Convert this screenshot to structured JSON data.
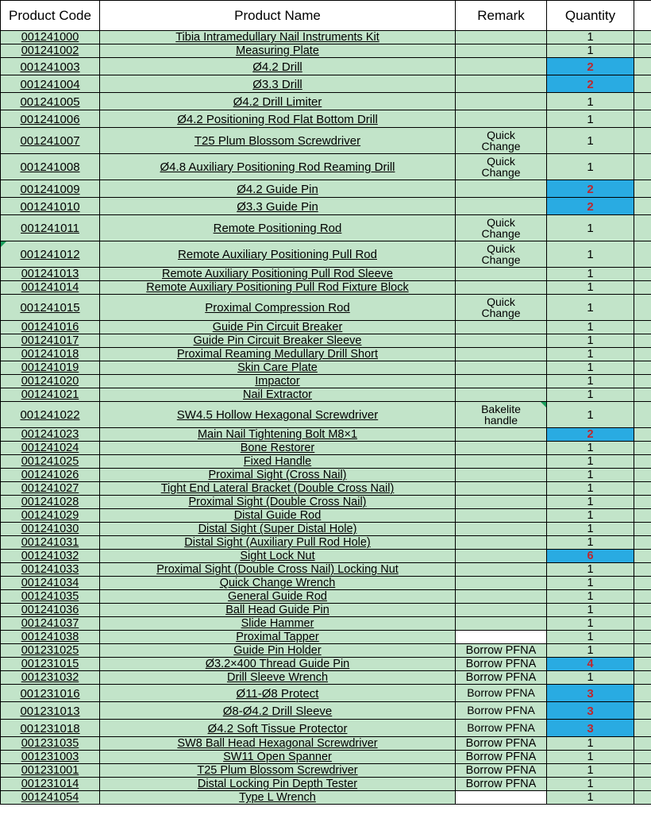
{
  "headers": {
    "code": "Product Code",
    "name": "Product Name",
    "remark": "Remark",
    "quantity": "Quantity"
  },
  "colors": {
    "cell_bg": "#c2e4c9",
    "header_bg": "#ffffff",
    "highlight_bg": "#29abe2",
    "highlight_fg": "#c0272d",
    "border": "#000000",
    "triangle": "#1a9e5c"
  },
  "rows": [
    {
      "code": "001241000",
      "name": "Tibia Intramedullary Nail Instruments Kit",
      "remark": "",
      "qty": "1",
      "h": "short",
      "qty_hl": false,
      "rw": false
    },
    {
      "code": "001241002",
      "name": "Measuring Plate",
      "remark": "",
      "qty": "1",
      "h": "short",
      "qty_hl": false,
      "rw": false
    },
    {
      "code": "001241003",
      "name": "Ø4.2 Drill",
      "remark": "",
      "qty": "2",
      "h": "med",
      "qty_hl": true,
      "rw": false
    },
    {
      "code": "001241004",
      "name": "Ø3.3 Drill",
      "remark": "",
      "qty": "2",
      "h": "med",
      "qty_hl": true,
      "rw": false
    },
    {
      "code": "001241005",
      "name": "Ø4.2 Drill Limiter",
      "remark": "",
      "qty": "1",
      "h": "med",
      "qty_hl": false,
      "rw": false
    },
    {
      "code": "001241006",
      "name": "Ø4.2 Positioning Rod Flat Bottom Drill",
      "remark": "",
      "qty": "1",
      "h": "med",
      "qty_hl": false,
      "rw": false
    },
    {
      "code": "001241007",
      "name": "T25 Plum Blossom Screwdriver",
      "remark": "Quick\nChange",
      "qty": "1",
      "h": "tall",
      "qty_hl": false,
      "rw": false
    },
    {
      "code": "001241008",
      "name": "Ø4.8 Auxiliary Positioning Rod Reaming Drill",
      "remark": "Quick\nChange",
      "qty": "1",
      "h": "tall",
      "qty_hl": false,
      "rw": false
    },
    {
      "code": "001241009",
      "name": "Ø4.2 Guide Pin",
      "remark": "",
      "qty": "2",
      "h": "med",
      "qty_hl": true,
      "rw": false
    },
    {
      "code": "001241010",
      "name": "Ø3.3 Guide Pin",
      "remark": "",
      "qty": "2",
      "h": "med",
      "qty_hl": true,
      "rw": false
    },
    {
      "code": "001241011",
      "name": "Remote Positioning Rod",
      "remark": "Quick\nChange",
      "qty": "1",
      "h": "tall",
      "qty_hl": false,
      "rw": false
    },
    {
      "code": "001241012",
      "name": "Remote Auxiliary Positioning Pull Rod",
      "remark": "Quick\nChange",
      "qty": "1",
      "h": "tall",
      "qty_hl": false,
      "rw": false,
      "tri": "code"
    },
    {
      "code": "001241013",
      "name": "Remote Auxiliary Positioning Pull Rod Sleeve",
      "remark": "",
      "qty": "1",
      "h": "short",
      "qty_hl": false,
      "rw": false
    },
    {
      "code": "001241014",
      "name": "Remote Auxiliary Positioning Pull Rod Fixture Block",
      "remark": "",
      "qty": "1",
      "h": "short",
      "qty_hl": false,
      "rw": false
    },
    {
      "code": "001241015",
      "name": "Proximal Compression Rod",
      "remark": "Quick\nChange",
      "qty": "1",
      "h": "tall",
      "qty_hl": false,
      "rw": false
    },
    {
      "code": "001241016",
      "name": "Guide Pin Circuit Breaker",
      "remark": "",
      "qty": "1",
      "h": "short",
      "qty_hl": false,
      "rw": false
    },
    {
      "code": "001241017",
      "name": "Guide Pin Circuit Breaker Sleeve",
      "remark": "",
      "qty": "1",
      "h": "short",
      "qty_hl": false,
      "rw": false
    },
    {
      "code": "001241018",
      "name": "Proximal Reaming Medullary Drill Short",
      "remark": "",
      "qty": "1",
      "h": "short",
      "qty_hl": false,
      "rw": false
    },
    {
      "code": "001241019",
      "name": "Skin Care Plate",
      "remark": "",
      "qty": "1",
      "h": "short",
      "qty_hl": false,
      "rw": false
    },
    {
      "code": "001241020",
      "name": "Impactor",
      "remark": "",
      "qty": "1",
      "h": "short",
      "qty_hl": false,
      "rw": false
    },
    {
      "code": "001241021",
      "name": "Nail Extractor",
      "remark": "",
      "qty": "1",
      "h": "short",
      "qty_hl": false,
      "rw": false
    },
    {
      "code": "001241022",
      "name": "SW4.5 Hollow Hexagonal Screwdriver",
      "remark": "Bakelite\nhandle",
      "qty": "1",
      "h": "tall",
      "qty_hl": false,
      "rw": false,
      "tri": "remark"
    },
    {
      "code": "001241023",
      "name": "Main Nail Tightening Bolt M8×1",
      "remark": "",
      "qty": "2",
      "h": "short",
      "qty_hl": true,
      "rw": false
    },
    {
      "code": "001241024",
      "name": "Bone Restorer",
      "remark": "",
      "qty": "1",
      "h": "short",
      "qty_hl": false,
      "rw": false
    },
    {
      "code": "001241025",
      "name": "Fixed Handle",
      "remark": "",
      "qty": "1",
      "h": "short",
      "qty_hl": false,
      "rw": false
    },
    {
      "code": "001241026",
      "name": "Proximal Sight (Cross Nail)",
      "remark": "",
      "qty": "1",
      "h": "short",
      "qty_hl": false,
      "rw": false
    },
    {
      "code": "001241027",
      "name": "Tight End Lateral Bracket (Double Cross Nail)",
      "remark": "",
      "qty": "1",
      "h": "short",
      "qty_hl": false,
      "rw": false
    },
    {
      "code": "001241028",
      "name": "Proximal Sight (Double Cross Nail)",
      "remark": "",
      "qty": "1",
      "h": "short",
      "qty_hl": false,
      "rw": false
    },
    {
      "code": "001241029",
      "name": "Distal Guide Rod",
      "remark": "",
      "qty": "1",
      "h": "short",
      "qty_hl": false,
      "rw": false
    },
    {
      "code": "001241030",
      "name": "Distal Sight (Super Distal Hole)",
      "remark": "",
      "qty": "1",
      "h": "short",
      "qty_hl": false,
      "rw": false
    },
    {
      "code": "001241031",
      "name": "Distal Sight (Auxiliary Pull Rod Hole)",
      "remark": "",
      "qty": "1",
      "h": "short",
      "qty_hl": false,
      "rw": false
    },
    {
      "code": "001241032",
      "name": "Sight Lock Nut",
      "remark": "",
      "qty": "6",
      "h": "short",
      "qty_hl": true,
      "rw": false
    },
    {
      "code": "001241033",
      "name": "Proximal Sight (Double Cross Nail) Locking Nut",
      "remark": "",
      "qty": "1",
      "h": "short",
      "qty_hl": false,
      "rw": false
    },
    {
      "code": "001241034",
      "name": "Quick Change Wrench",
      "remark": "",
      "qty": "1",
      "h": "short",
      "qty_hl": false,
      "rw": false
    },
    {
      "code": "001241035",
      "name": "General Guide Rod",
      "remark": "",
      "qty": "1",
      "h": "short",
      "qty_hl": false,
      "rw": false
    },
    {
      "code": "001241036",
      "name": "Ball Head Guide Pin",
      "remark": "",
      "qty": "1",
      "h": "short",
      "qty_hl": false,
      "rw": false
    },
    {
      "code": "001241037",
      "name": "Slide Hammer",
      "remark": "",
      "qty": "1",
      "h": "short",
      "qty_hl": false,
      "rw": false
    },
    {
      "code": "001241038",
      "name": "Proximal Tapper",
      "remark": "",
      "qty": "1",
      "h": "short",
      "qty_hl": false,
      "rw": true
    },
    {
      "code": "001231025",
      "name": "Guide Pin Holder",
      "remark": "Borrow PFNA",
      "qty": "1",
      "h": "short",
      "qty_hl": false,
      "rw": false
    },
    {
      "code": "001231015",
      "name": "Ø3.2×400 Thread Guide Pin",
      "remark": "Borrow PFNA",
      "qty": "4",
      "h": "short",
      "qty_hl": true,
      "rw": false
    },
    {
      "code": "001231032",
      "name": "Drill Sleeve Wrench",
      "remark": "Borrow PFNA",
      "qty": "1",
      "h": "short",
      "qty_hl": false,
      "rw": false
    },
    {
      "code": "001231016",
      "name": "Ø11-Ø8 Protect",
      "remark": "Borrow PFNA",
      "qty": "3",
      "h": "med",
      "qty_hl": true,
      "rw": false
    },
    {
      "code": "001231013",
      "name": "Ø8-Ø4.2 Drill Sleeve",
      "remark": "Borrow PFNA",
      "qty": "3",
      "h": "med",
      "qty_hl": true,
      "rw": false
    },
    {
      "code": "001231018",
      "name": "Ø4.2 Soft Tissue Protector",
      "remark": "Borrow PFNA",
      "qty": "3",
      "h": "med",
      "qty_hl": true,
      "rw": false
    },
    {
      "code": "001231035",
      "name": "SW8 Ball Head Hexagonal Screwdriver",
      "remark": "Borrow PFNA",
      "qty": "1",
      "h": "short",
      "qty_hl": false,
      "rw": false
    },
    {
      "code": "001231003",
      "name": "SW11 Open Spanner",
      "remark": "Borrow PFNA",
      "qty": "1",
      "h": "short",
      "qty_hl": false,
      "rw": false
    },
    {
      "code": "001231001",
      "name": "T25 Plum Blossom Screwdriver",
      "remark": "Borrow PFNA",
      "qty": "1",
      "h": "short",
      "qty_hl": false,
      "rw": false
    },
    {
      "code": "001231014",
      "name": "Distal Locking Pin Depth Tester",
      "remark": "Borrow PFNA",
      "qty": "1",
      "h": "short",
      "qty_hl": false,
      "rw": false
    },
    {
      "code": "001241054",
      "name": "Type L Wrench",
      "remark": "",
      "qty": "1",
      "h": "short",
      "qty_hl": false,
      "rw": true
    }
  ]
}
